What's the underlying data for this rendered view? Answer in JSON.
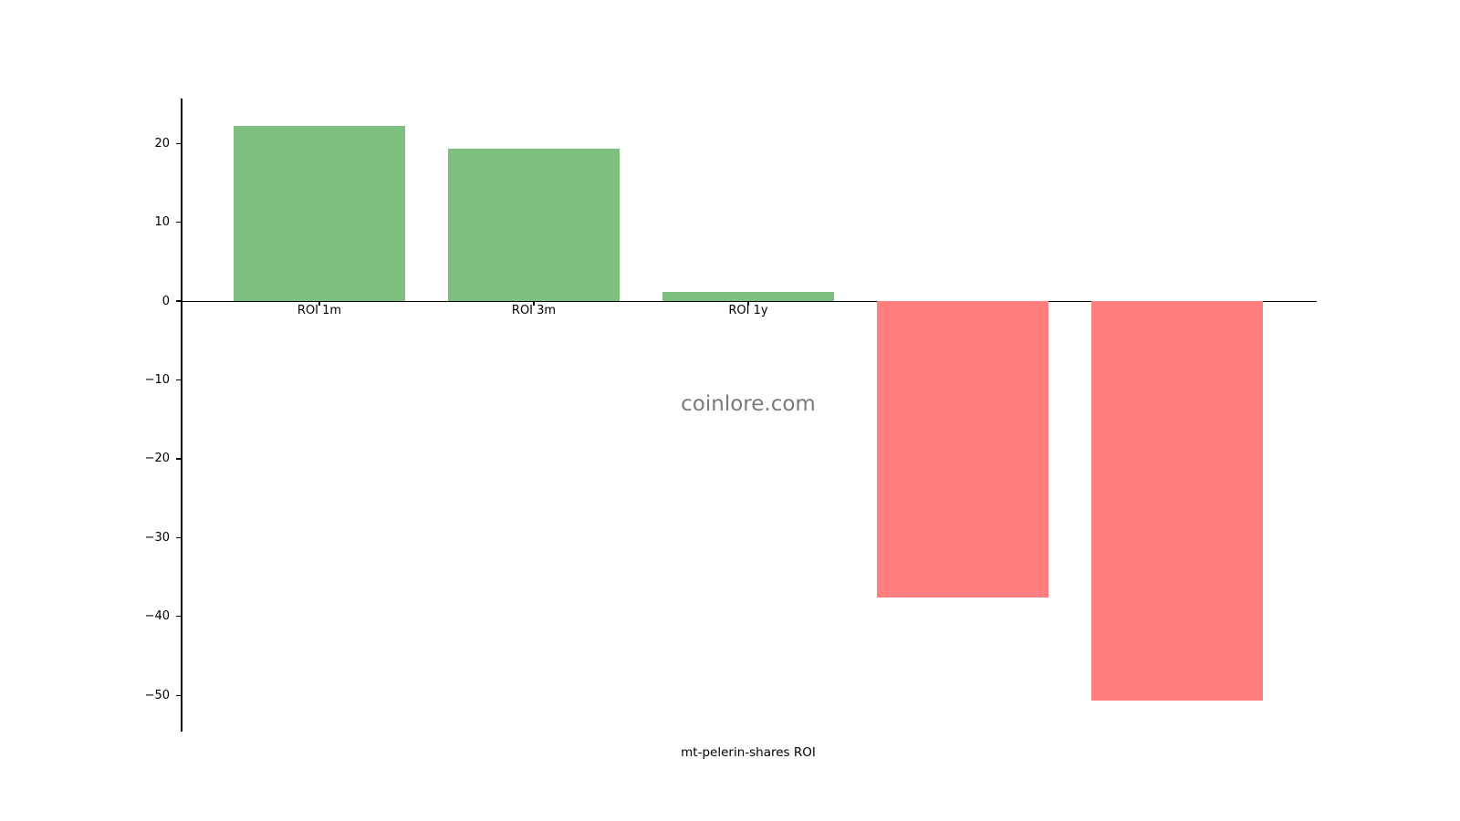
{
  "chart_data": {
    "type": "bar",
    "title": "mt-pelerin-shares ROI",
    "watermark": "coinlore.com",
    "categories": [
      "ROI 1m",
      "ROI 3m",
      "ROI 1y",
      "",
      ""
    ],
    "values": [
      22.2,
      19.3,
      1.1,
      -37.6,
      -50.7
    ],
    "bar_colors": [
      "#7fbf7f",
      "#7fbf7f",
      "#7fbf7f",
      "#ff7f7f",
      "#ff7f7f"
    ],
    "positive_color": "#7fbf7f",
    "negative_color": "#ff7f7f",
    "yticks": [
      20,
      10,
      0,
      -10,
      -20,
      -30,
      -40,
      -50
    ],
    "ytick_labels": [
      "20",
      "10",
      "0",
      "−10",
      "−20",
      "−30",
      "−40",
      "−50"
    ],
    "ylim": [
      -54.5,
      25.9
    ],
    "xlabel": "",
    "ylabel": "",
    "grid": false,
    "legend": "none",
    "axis_color": "#000000",
    "text_color": "#000000",
    "watermark_color": "#7a7a7a"
  }
}
